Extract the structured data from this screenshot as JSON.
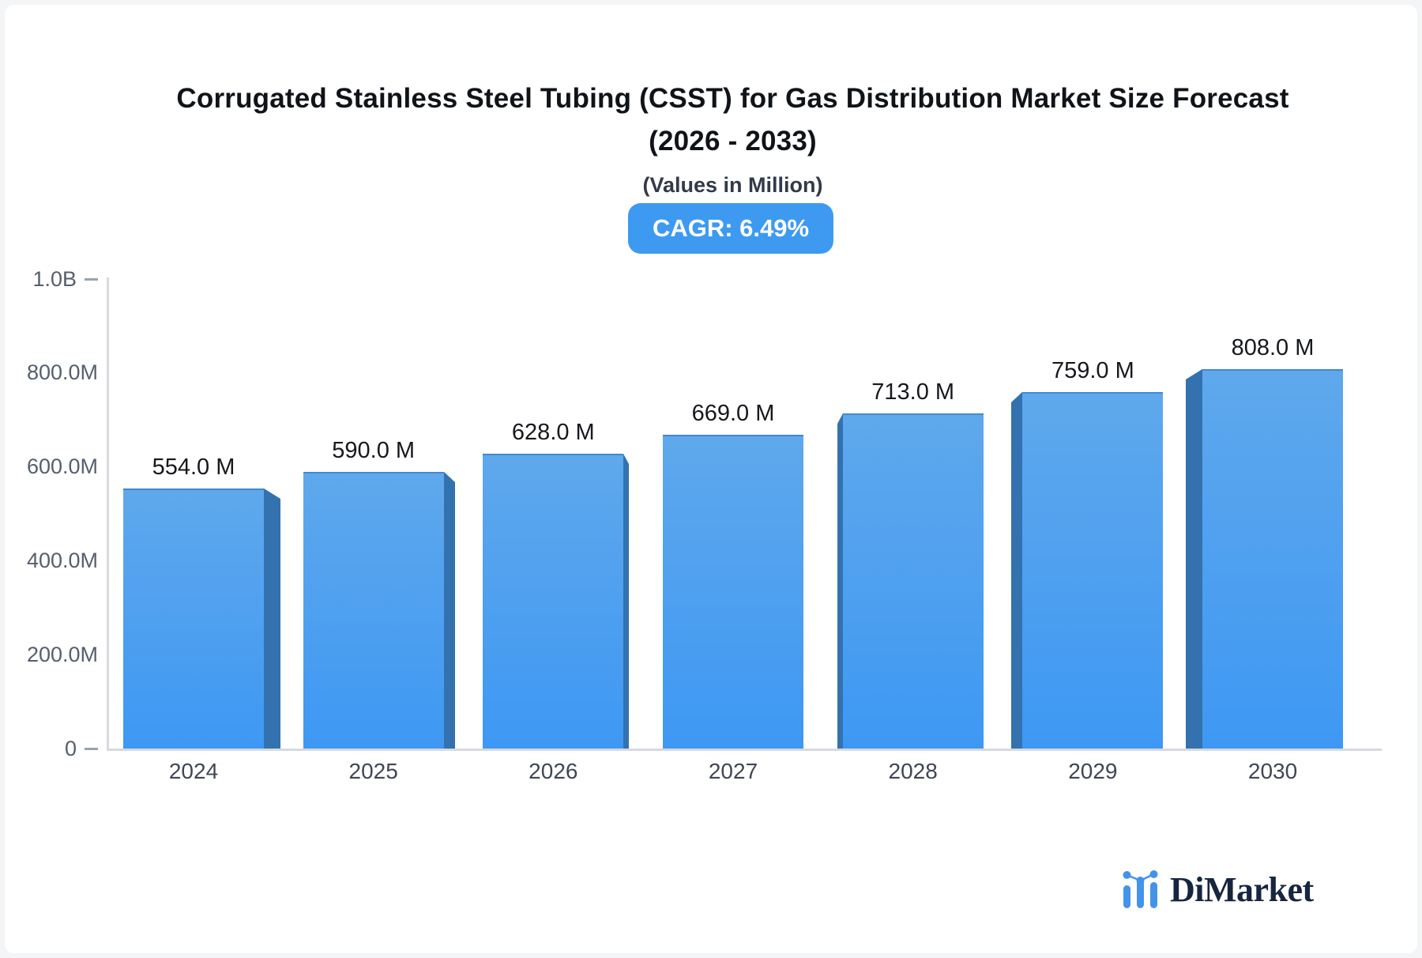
{
  "page": {
    "background": "#f3f5f7",
    "card_background": "#ffffff"
  },
  "header": {
    "title_line1": "Corrugated Stainless Steel Tubing (CSST) for Gas Distribution Market Size Forecast",
    "title_line2": "(2026 - 2033)",
    "subtitle": "(Values in Million)",
    "cagr_badge_label": "CAGR: 6.49%",
    "cagr_pct": 6.49,
    "badge_color": "#3d9af0"
  },
  "chart_data": {
    "type": "bar",
    "title": "Corrugated Stainless Steel Tubing (CSST) for Gas Distribution Market Size Forecast (2026 - 2033)",
    "subtitle": "(Values in Million)",
    "categories": [
      "2024",
      "2025",
      "2026",
      "2027",
      "2028",
      "2029",
      "2030"
    ],
    "values": [
      554,
      590,
      628,
      669,
      713,
      759,
      808
    ],
    "value_labels": [
      "554.0 M",
      "590.0 M",
      "628.0 M",
      "669.0 M",
      "713.0 M",
      "759.0 M",
      "808.0 M"
    ],
    "xlabel": "",
    "ylabel": "",
    "ylim": [
      0,
      1000
    ],
    "grid": false,
    "legend": "none",
    "yticks": [
      {
        "label": "1.0B",
        "value": 1000,
        "dash": true
      },
      {
        "label": "800.0M",
        "value": 800,
        "dash": false
      },
      {
        "label": "600.0M",
        "value": 600,
        "dash": false
      },
      {
        "label": "400.0M",
        "value": 400,
        "dash": false
      },
      {
        "label": "200.0M",
        "value": 200,
        "dash": false
      },
      {
        "label": "0",
        "value": 0,
        "dash": true
      }
    ],
    "bar_style": "3d-perspective",
    "bar_color_top": "#5fa8ec",
    "bar_color_bottom": "#3e98f3",
    "bar_side_color": "#3372af",
    "axis_color": "#d6dade",
    "tick_label_color": "#555f6d",
    "category_label_color": "#3f4654",
    "value_label_color": "#16181d"
  },
  "footer": {
    "brand": "DiMarket",
    "logo_icon": "mini-bar-chart-icon",
    "brand_color": "#162540",
    "logo_blue": "#4493ea"
  }
}
